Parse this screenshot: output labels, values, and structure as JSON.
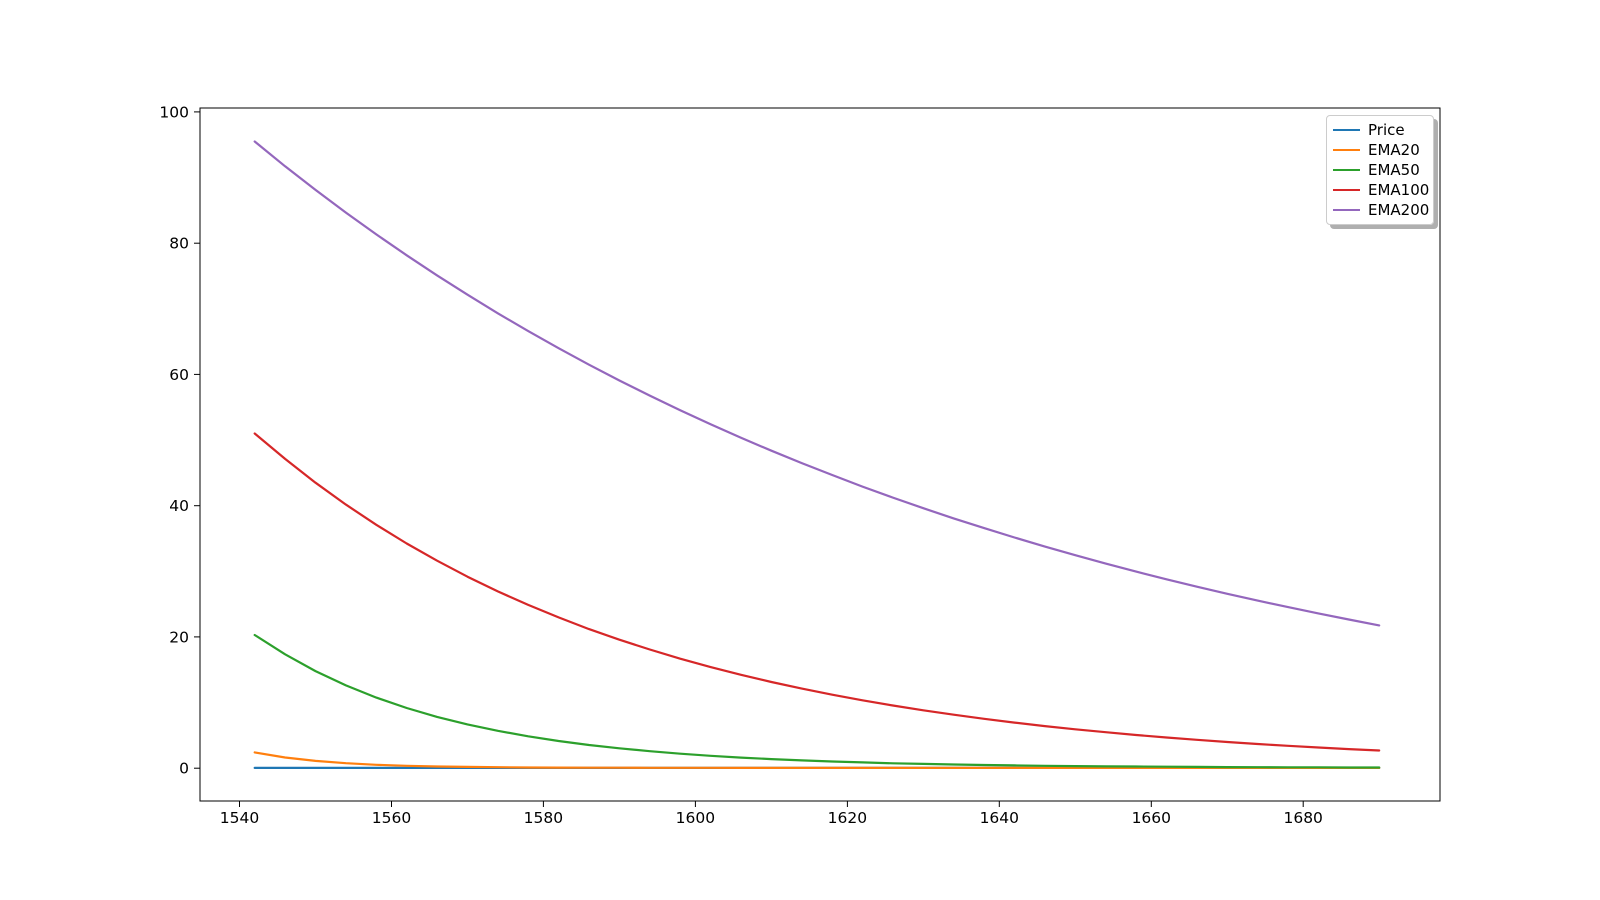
{
  "chart_data": {
    "type": "line",
    "title": "",
    "xlabel": "",
    "ylabel": "",
    "grid": false,
    "legend_position": "upper right",
    "background_color": "#ffffff",
    "spine_color": "#000000",
    "xlim": [
      1534.8,
      1698.0
    ],
    "ylim": [
      -5.0,
      100.6
    ],
    "x_ticks": [
      1540,
      1560,
      1580,
      1600,
      1620,
      1640,
      1660,
      1680
    ],
    "y_ticks": [
      0,
      20,
      40,
      60,
      80,
      100
    ],
    "x": [
      1542,
      1546,
      1550,
      1554,
      1558,
      1562,
      1566,
      1570,
      1574,
      1578,
      1582,
      1586,
      1590,
      1594,
      1598,
      1602,
      1606,
      1610,
      1614,
      1618,
      1622,
      1626,
      1630,
      1634,
      1638,
      1642,
      1646,
      1650,
      1654,
      1658,
      1662,
      1666,
      1670,
      1674,
      1678,
      1682,
      1686,
      1690
    ],
    "series": [
      {
        "name": "Price",
        "color": "#1f77b4",
        "values": [
          0.05,
          0.05,
          0.05,
          0.05,
          0.05,
          0.05,
          0.05,
          0.05,
          0.05,
          0.05,
          0.05,
          0.05,
          0.05,
          0.05,
          0.05,
          0.05,
          0.05,
          0.05,
          0.05,
          0.05,
          0.05,
          0.05,
          0.05,
          0.05,
          0.05,
          0.05,
          0.05,
          0.05,
          0.05,
          0.05,
          0.05,
          0.05,
          0.05,
          0.05,
          0.05,
          0.05,
          0.05,
          0.05
        ]
      },
      {
        "name": "EMA20",
        "color": "#ff7f0e",
        "values": [
          2.4,
          1.63,
          1.11,
          0.76,
          0.52,
          0.37,
          0.26,
          0.19,
          0.15,
          0.11,
          0.09,
          0.08,
          0.07,
          0.06,
          0.06,
          0.06,
          0.05,
          0.05,
          0.05,
          0.05,
          0.05,
          0.05,
          0.05,
          0.05,
          0.05,
          0.05,
          0.05,
          0.05,
          0.05,
          0.05,
          0.05,
          0.05,
          0.05,
          0.05,
          0.05,
          0.05,
          0.05,
          0.05
        ]
      },
      {
        "name": "EMA50",
        "color": "#2ca02c",
        "values": [
          20.3,
          17.35,
          14.79,
          12.61,
          10.75,
          9.17,
          7.82,
          6.67,
          5.69,
          4.86,
          4.15,
          3.54,
          3.03,
          2.59,
          2.21,
          1.89,
          1.62,
          1.39,
          1.19,
          1.02,
          0.88,
          0.75,
          0.65,
          0.56,
          0.49,
          0.42,
          0.37,
          0.32,
          0.28,
          0.25,
          0.22,
          0.19,
          0.17,
          0.15,
          0.14,
          0.13,
          0.11,
          0.1
        ]
      },
      {
        "name": "EMA100",
        "color": "#d62728",
        "values": [
          51.0,
          47.13,
          43.51,
          40.17,
          37.08,
          34.24,
          31.61,
          29.18,
          26.94,
          24.88,
          22.97,
          21.2,
          19.58,
          18.08,
          16.69,
          15.41,
          14.23,
          13.14,
          12.13,
          11.2,
          10.35,
          9.56,
          8.82,
          8.15,
          7.53,
          6.95,
          6.42,
          5.93,
          5.48,
          5.06,
          4.68,
          4.32,
          3.99,
          3.69,
          3.41,
          3.15,
          2.91,
          2.69
        ]
      },
      {
        "name": "EMA200",
        "color": "#9467bd",
        "values": [
          95.5,
          91.71,
          88.12,
          84.66,
          81.34,
          78.16,
          75.09,
          72.15,
          69.32,
          66.61,
          64.0,
          61.49,
          59.08,
          56.77,
          54.54,
          52.41,
          50.35,
          48.38,
          46.49,
          44.67,
          42.91,
          41.23,
          39.62,
          38.07,
          36.58,
          35.15,
          33.77,
          32.45,
          31.18,
          29.96,
          28.78,
          27.66,
          26.57,
          25.53,
          24.54,
          23.58,
          22.65,
          21.76
        ]
      }
    ]
  }
}
